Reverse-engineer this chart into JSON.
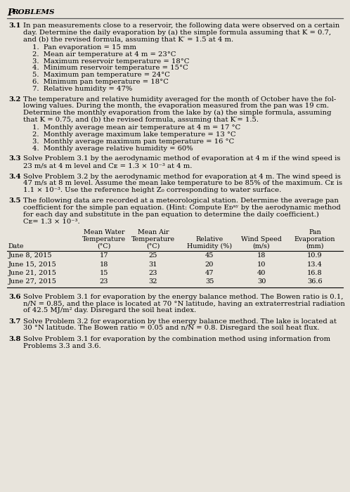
{
  "bg_color": "#e8e4dc",
  "title": "PROBLEMS",
  "problems": [
    {
      "number": "3.1",
      "bold_part": "3.1",
      "text_lines": [
        "In pan measurements close to a reservoir, the following data were observed on a certain",
        "day. Determine the daily evaporation by (a) the simple formula assuming that K = 0.7,",
        "and (b) the revised formula, assuming that K′ = 1.5 at 4 m."
      ],
      "items": [
        "1.  Pan evaporation = 15 mm",
        "2.  Mean air temperature at 4 m = 23°C",
        "3.  Maximum reservoir temperature = 18°C",
        "4.  Minimum reservoir temperature = 15°C",
        "5.  Maximum pan temperature = 24°C",
        "6.  Minimum pan temperature = 18°C",
        "7.  Relative humidity = 47%"
      ]
    },
    {
      "number": "3.2",
      "text_lines": [
        "The temperature and relative humidity averaged for the month of October have the fol-",
        "lowing values. During the month, the evaporation measured from the pan was 19 cm.",
        "Determine the monthly evaporation from the lake by (a) the simple formula, assuming",
        "that K = 0.75, and (b) the revised formula, assuming that K′= 1.5."
      ],
      "items": [
        "1.  Monthly average mean air temperature at 4 m = 17 °C",
        "2.  Monthly average maximum lake temperature = 13 °C",
        "3.  Monthly average maximum pan temperature = 16 °C",
        "4.  Monthly average relative humidity = 60%"
      ]
    },
    {
      "number": "3.3",
      "text_lines": [
        "Solve Problem 3.1 by the aerodynamic method of evaporation at 4 m if the wind speed is",
        "23 m/s at 4 m level and Cᴇ = 1.3 × 10⁻³ at 4 m."
      ],
      "items": []
    },
    {
      "number": "3.4",
      "text_lines": [
        "Solve Problem 3.2 by the aerodynamic method for evaporation at 4 m. The wind speed is",
        "47 m/s at 8 m level. Assume the mean lake temperature to be 85% of the maximum. Cᴇ is",
        "1.1 × 10⁻³. Use the reference height Z₀ corresponding to water surface."
      ],
      "items": []
    },
    {
      "number": "3.5",
      "text_lines": [
        "The following data are recorded at a meteorological station. Determine the average pan",
        "coefficient for the simple pan equation. (Hint: Compute Eᴅᵃʸ by the aerodynamic method",
        "for each day and substitute in the pan equation to determine the daily coefficient.)",
        "Cᴇ= 1.3 × 10⁻³."
      ],
      "items": [],
      "table": {
        "header_rows": [
          [
            "",
            "Mean Water",
            "Mean Air",
            "",
            "",
            "Pan"
          ],
          [
            "",
            "Temperature",
            "Temperature",
            "Relative",
            "Wind Speed",
            "Evaporation"
          ],
          [
            "Date",
            "(°C)",
            "(°C)",
            "Humidity (%)",
            "(m/s)",
            "(mm)"
          ]
        ],
        "rows": [
          [
            "June 8, 2015",
            "17",
            "25",
            "45",
            "18",
            "10.9"
          ],
          [
            "June 15, 2015",
            "18",
            "31",
            "20",
            "10",
            "13.4"
          ],
          [
            "June 21, 2015",
            "15",
            "23",
            "47",
            "40",
            "16.8"
          ],
          [
            "June 27, 2015",
            "23",
            "32",
            "35",
            "30",
            "36.6"
          ]
        ]
      }
    },
    {
      "number": "3.6",
      "text_lines": [
        "Solve Problem 3.1 for evaporation by the energy balance method. The Bowen ratio is 0.1,",
        "n/N = 0.85, and the place is located at 70 °N latitude, having an extraterrestrial radiation",
        "of 42.5 MJ/m² day. Disregard the soil heat index."
      ],
      "items": []
    },
    {
      "number": "3.7",
      "text_lines": [
        "Solve Problem 3.2 for evaporation by the energy balance method. The lake is located at",
        "30 °N latitude. The Bowen ratio = 0.05 and n/N = 0.8. Disregard the soil heat flux."
      ],
      "items": []
    },
    {
      "number": "3.8",
      "text_lines": [
        "Solve Problem 3.1 for evaporation by the combination method using information from",
        "Problems 3.3 and 3.6."
      ],
      "items": []
    }
  ]
}
